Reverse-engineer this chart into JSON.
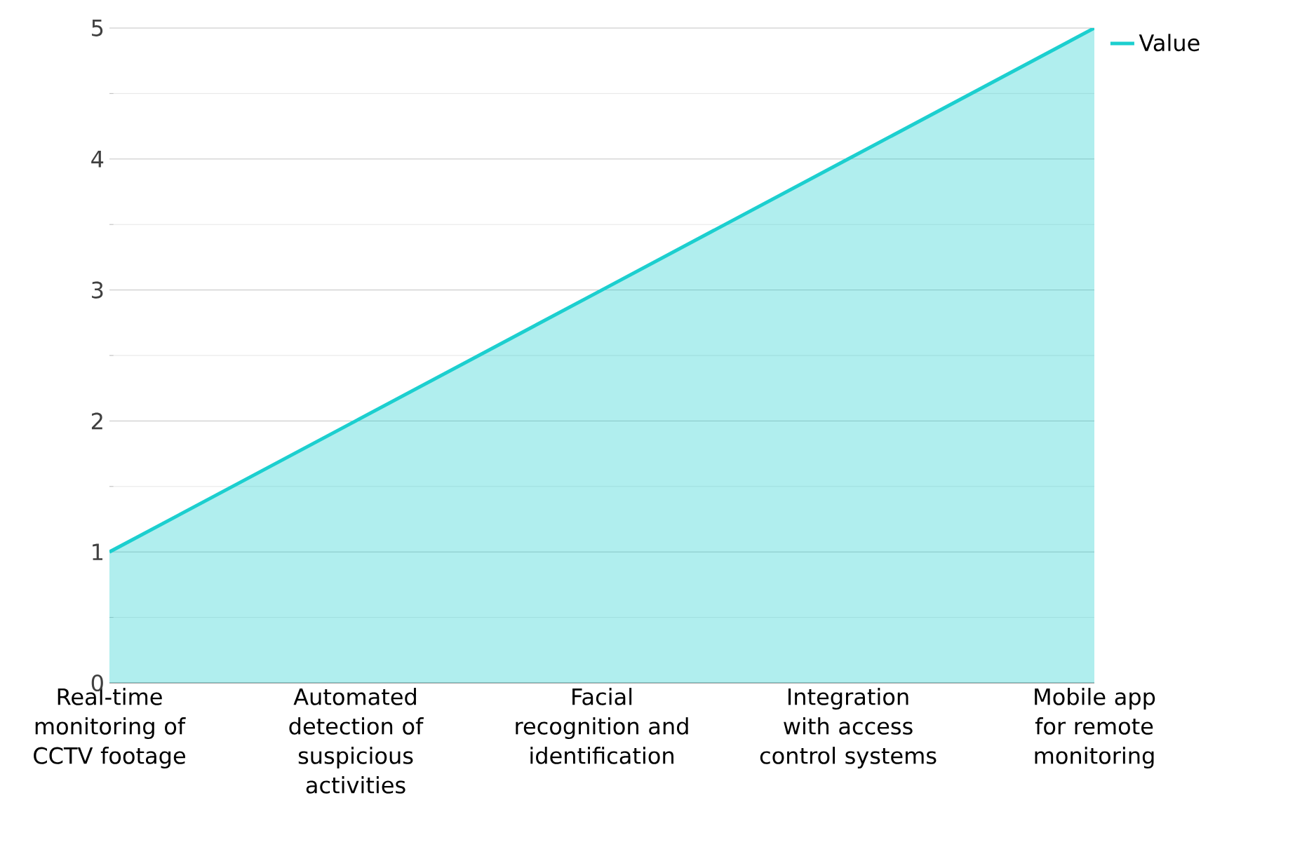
{
  "chart_data": {
    "type": "area",
    "categories": [
      "Real-time monitoring of CCTV footage",
      "Automated detection of suspicious activities",
      "Facial recognition and identification",
      "Integration with access control systems",
      "Mobile app for remote monitoring"
    ],
    "series": [
      {
        "name": "Value",
        "color": "#1ccfcf",
        "values": [
          1,
          2,
          3,
          4,
          5
        ]
      }
    ],
    "ylim": [
      0,
      5
    ],
    "yticks": [
      0,
      1,
      2,
      3,
      4,
      5
    ],
    "grid": "y",
    "legend": "top right"
  }
}
